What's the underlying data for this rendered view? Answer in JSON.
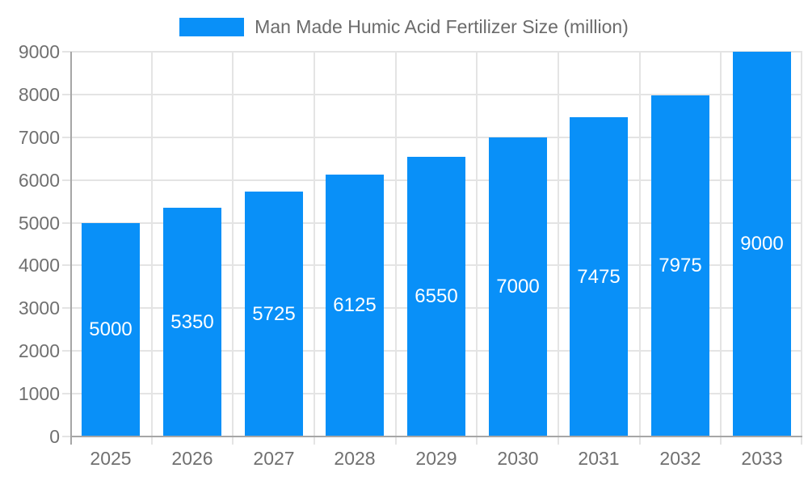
{
  "chart_data": {
    "type": "bar",
    "categories": [
      "2025",
      "2026",
      "2027",
      "2028",
      "2029",
      "2030",
      "2031",
      "2032",
      "2033"
    ],
    "values": [
      5000,
      5350,
      5725,
      6125,
      6550,
      7000,
      7475,
      7975,
      9000
    ],
    "legend_entries": [
      "Man Made Humic Acid Fertilizer Size (million)"
    ],
    "title": "",
    "xlabel": "",
    "ylabel": "",
    "ylim": [
      0,
      9000
    ],
    "ytick_step": 1000,
    "grid": true,
    "legend_position": "top-center",
    "bar_label_position": "inside-center",
    "colors": {
      "bar": "#0990f8",
      "grid": "#e4e4e4",
      "axis": "#a6a6a6",
      "axis_label": "#707070",
      "legend_text": "#6b6b6b",
      "bar_label": "#ffffff",
      "background": "#ffffff"
    }
  }
}
